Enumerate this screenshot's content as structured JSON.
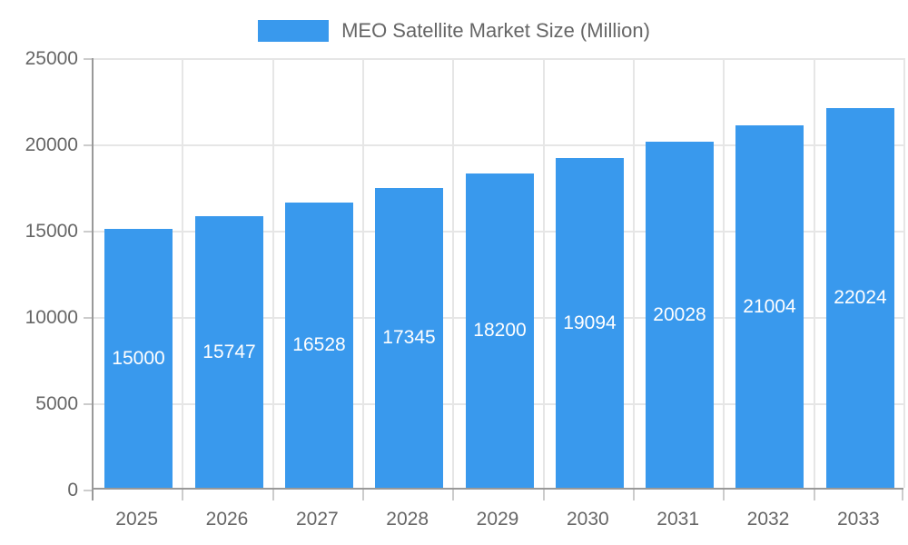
{
  "legend": {
    "label": "MEO Satellite Market Size (Million)"
  },
  "chart_data": {
    "type": "bar",
    "title": "MEO Satellite Market Size (Million)",
    "categories": [
      "2025",
      "2026",
      "2027",
      "2028",
      "2029",
      "2030",
      "2031",
      "2032",
      "2033"
    ],
    "values": [
      15000,
      15747,
      16528,
      17345,
      18200,
      19094,
      20028,
      21004,
      22024
    ],
    "xlabel": "",
    "ylabel": "",
    "ylim": [
      0,
      25000
    ],
    "yticks": [
      0,
      5000,
      10000,
      15000,
      20000,
      25000
    ],
    "grid": true,
    "legend_position": "top",
    "value_labels": "inside-center",
    "colors": {
      "bar": "#3999ED",
      "bar_value_text": "#ffffff",
      "axis_text": "#666666",
      "grid_line": "#e6e6e6",
      "axis_line": "#999999",
      "tick_mark": "#cccccc",
      "background": "#ffffff"
    }
  }
}
